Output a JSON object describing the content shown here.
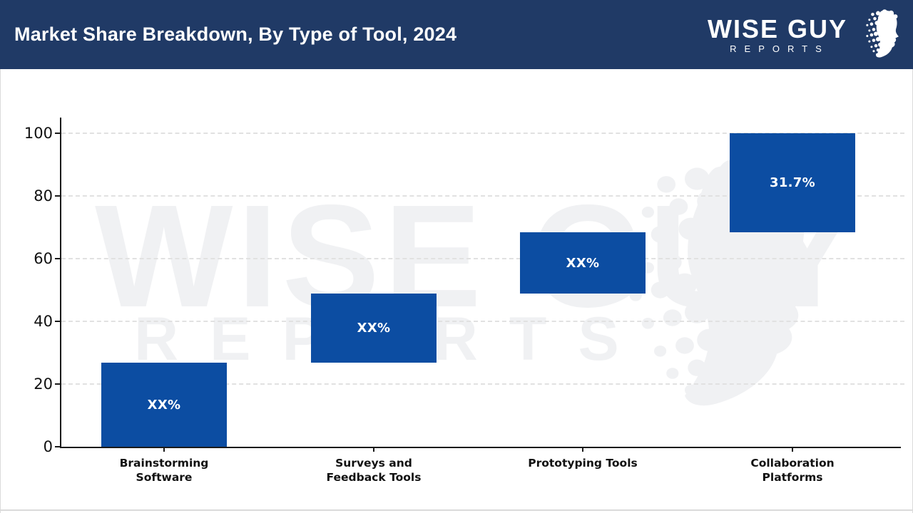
{
  "header": {
    "title": "Market Share Breakdown, By Type of Tool, 2024",
    "logo": {
      "line1": "WISE GUY",
      "line2": "REPORTS",
      "icon": "dotted-face-profile-icon"
    }
  },
  "watermark": {
    "line1": "WISE GUY",
    "line2": "REPORTS",
    "icon": "dotted-face-profile-icon"
  },
  "colors": {
    "header_bg": "#203A66",
    "title_text": "#FFFFFF",
    "bar_fill": "#0C4DA2",
    "bar_label_text": "#FFFFFF",
    "gridline": "#E1E1E1",
    "axis": "#1A1A1A",
    "watermark": "#F0F1F3"
  },
  "chart_data": {
    "type": "bar",
    "subtype": "waterfall-floating-bars",
    "title": "Market Share Breakdown, By Type of Tool, 2024",
    "categories": [
      {
        "label": "Brainstorming Software",
        "lines": [
          "Brainstorming",
          "Software"
        ]
      },
      {
        "label": "Surveys and Feedback Tools",
        "lines": [
          "Surveys and",
          "Feedback Tools"
        ]
      },
      {
        "label": "Prototyping Tools",
        "lines": [
          "Prototyping Tools"
        ]
      },
      {
        "label": "Collaboration Platforms",
        "lines": [
          "Collaboration",
          "Platforms"
        ]
      }
    ],
    "segments": [
      {
        "category": "Brainstorming Software",
        "start": 0,
        "end": 26.8,
        "label": "XX%"
      },
      {
        "category": "Surveys and Feedback Tools",
        "start": 26.8,
        "end": 48.9,
        "label": "XX%"
      },
      {
        "category": "Prototyping Tools",
        "start": 48.9,
        "end": 68.3,
        "label": "XX%"
      },
      {
        "category": "Collaboration Platforms",
        "start": 68.3,
        "end": 100,
        "label": "31.7%",
        "value": 31.7
      }
    ],
    "ylim": [
      0,
      100
    ],
    "yticks": [
      0,
      20,
      40,
      60,
      80,
      100
    ],
    "grid": "horizontal-dashed",
    "legend": false
  }
}
